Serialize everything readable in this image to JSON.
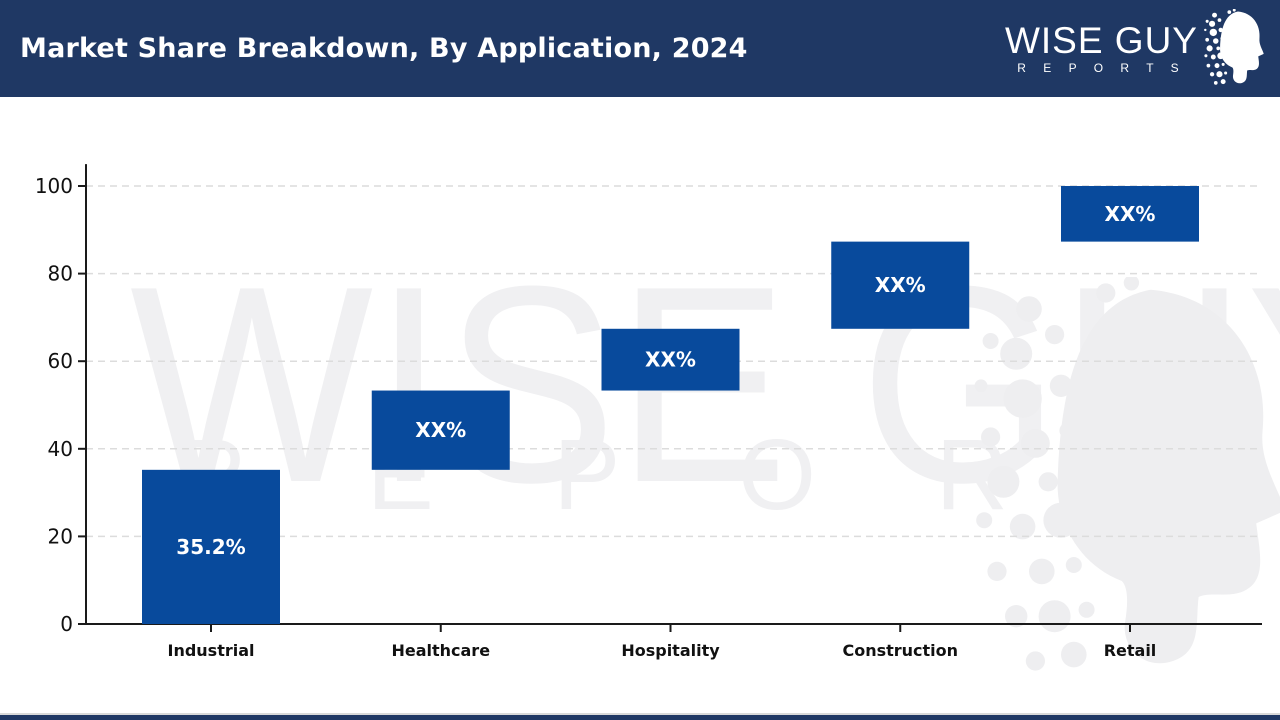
{
  "header": {
    "title": "Market Share Breakdown, By Application, 2024",
    "logo": {
      "wordmark": "WISE GUY",
      "subtext": "R E P O R T S"
    }
  },
  "watermark": {
    "wordmark": "WISE GUY",
    "subtext": "R E P O R T S"
  },
  "chart_data": {
    "type": "bar",
    "subtype": "floating-waterfall",
    "title": "Market Share Breakdown, By Application, 2024",
    "categories": [
      "Industrial",
      "Healthcare",
      "Hospitality",
      "Construction",
      "Retail"
    ],
    "series": [
      {
        "name": "Market share (%)",
        "segments": [
          {
            "category": "Industrial",
            "start": 0,
            "end": 35.2,
            "label": "35.2%"
          },
          {
            "category": "Healthcare",
            "start": 35.2,
            "end": 53.3,
            "label": "XX%"
          },
          {
            "category": "Hospitality",
            "start": 53.3,
            "end": 67.4,
            "label": "XX%"
          },
          {
            "category": "Construction",
            "start": 67.4,
            "end": 87.3,
            "label": "XX%"
          },
          {
            "category": "Retail",
            "start": 87.3,
            "end": 100,
            "label": "XX%"
          }
        ]
      }
    ],
    "xlabel": "",
    "ylabel": "",
    "yticks": [
      0,
      20,
      40,
      60,
      80,
      100
    ],
    "ylim": [
      0,
      105
    ],
    "grid": "horizontal-dashed",
    "legend": "none"
  },
  "colors": {
    "header_bg": "#1f3864",
    "bar": "#084a9c",
    "bar_label": "#ffffff",
    "gridline": "#dcdcdc",
    "axis": "#1a1a1a",
    "tick_label": "#111111",
    "watermark": "#f0f0f2",
    "background": "#ffffff"
  }
}
